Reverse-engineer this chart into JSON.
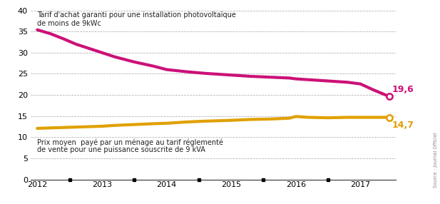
{
  "pink_x": [
    2012.0,
    2012.2,
    2012.4,
    2012.6,
    2012.8,
    2013.0,
    2013.2,
    2013.5,
    2013.8,
    2014.0,
    2014.3,
    2014.6,
    2015.0,
    2015.3,
    2015.6,
    2015.9,
    2016.0,
    2016.2,
    2016.5,
    2016.8,
    2017.0,
    2017.2,
    2017.45
  ],
  "pink_y": [
    35.4,
    34.5,
    33.3,
    32.0,
    31.0,
    30.0,
    29.0,
    27.8,
    26.8,
    26.0,
    25.5,
    25.1,
    24.7,
    24.4,
    24.2,
    24.0,
    23.8,
    23.6,
    23.3,
    23.0,
    22.6,
    21.2,
    19.6
  ],
  "orange_x": [
    2012.0,
    2012.2,
    2012.4,
    2012.6,
    2012.8,
    2013.0,
    2013.2,
    2013.5,
    2013.8,
    2014.0,
    2014.3,
    2014.6,
    2015.0,
    2015.3,
    2015.6,
    2015.9,
    2016.0,
    2016.2,
    2016.5,
    2016.8,
    2017.0,
    2017.2,
    2017.45
  ],
  "orange_y": [
    12.1,
    12.2,
    12.3,
    12.4,
    12.5,
    12.6,
    12.8,
    13.0,
    13.2,
    13.3,
    13.6,
    13.8,
    14.0,
    14.2,
    14.3,
    14.5,
    14.9,
    14.7,
    14.6,
    14.7,
    14.7,
    14.7,
    14.7
  ],
  "pink_color": "#cc1177",
  "orange_color": "#e0a000",
  "pink_label_value": "19,6",
  "orange_label_value": "14,7",
  "pink_annotation_line1": "Tarif d'achat garanti pour une installation photovoltaïque",
  "pink_annotation_line2": "de moins de 9kWc",
  "orange_annotation_line1": "Prix moyen  payé par un ménage au tarif réglementé",
  "orange_annotation_line2": "de vente pour une puissance souscrite de 9 kVA",
  "source_text": "Source : Journal Officiel",
  "xlim": [
    2011.9,
    2017.55
  ],
  "ylim": [
    0,
    41
  ],
  "yticks": [
    0,
    5,
    10,
    15,
    20,
    25,
    30,
    35,
    40
  ],
  "xtick_years": [
    2012,
    2013,
    2014,
    2015,
    2016,
    2017
  ],
  "xtick_marks": [
    2012.5,
    2013.5,
    2014.5,
    2015.5,
    2016.5
  ],
  "background_color": "#ffffff",
  "grid_color": "#999999",
  "line_width": 3.0,
  "annotation_fontsize": 7.0,
  "tick_label_fontsize": 8,
  "value_label_fontsize": 9
}
